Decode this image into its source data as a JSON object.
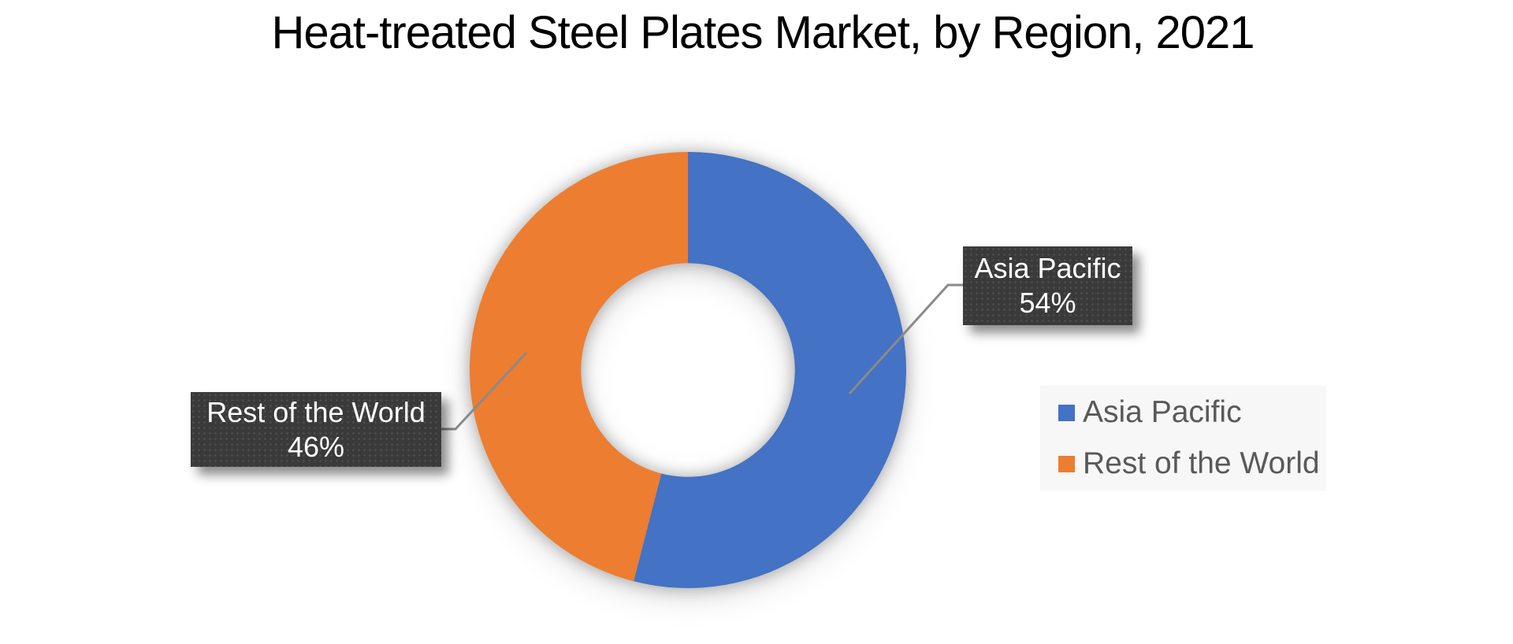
{
  "title": "Heat-treated Steel Plates Market, by Region, 2021",
  "chart_data": {
    "type": "pie",
    "subtype": "donut",
    "title": "Heat-treated Steel Plates Market, by Region, 2021",
    "categories": [
      "Asia Pacific",
      "Rest of the World"
    ],
    "values": [
      54,
      46
    ],
    "unit": "%",
    "colors": [
      "#4472C4",
      "#ED7D31"
    ],
    "donut_hole_ratio": 0.49,
    "start_angle_deg": 0,
    "direction": "clockwise",
    "legend_position": "right",
    "data_labels": [
      "Asia Pacific 54%",
      "Rest of the World 46%"
    ]
  },
  "callouts": [
    {
      "label": "Asia Pacific",
      "value_text": "54%"
    },
    {
      "label": "Rest of the World",
      "value_text": "46%"
    }
  ],
  "legend": {
    "items": [
      {
        "label": "Asia Pacific",
        "color": "#4472C4"
      },
      {
        "label": "Rest of the World",
        "color": "#ED7D31"
      }
    ]
  },
  "style": {
    "leader_line_color": "#8a8a8a",
    "callout_bg": "#3a3a3a",
    "legend_bg": "#f7f7f7",
    "legend_text_color": "#595959"
  }
}
